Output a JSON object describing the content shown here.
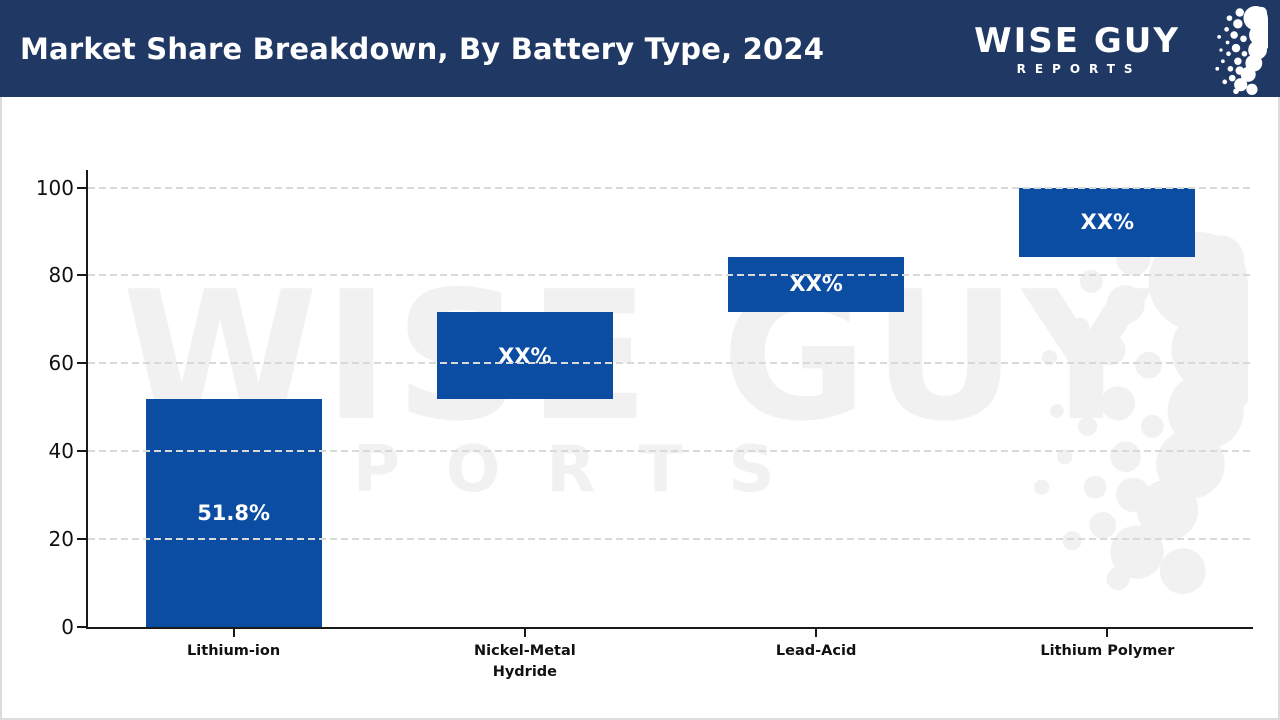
{
  "header": {
    "title": "Market Share Breakdown, By Battery Type, 2024",
    "logo": {
      "name": "WISE GUY",
      "sub": "REPORTS"
    }
  },
  "watermark": {
    "line1": "WISE GUY",
    "line2": "REPORTS"
  },
  "chart_data": {
    "type": "bar",
    "subtype": "waterfall",
    "title": "Market Share Breakdown, By Battery Type, 2024",
    "categories": [
      "Lithium-ion",
      "Nickel-Metal Hydride",
      "Lead-Acid",
      "Lithium Polymer"
    ],
    "segments": [
      {
        "category": "Lithium-ion",
        "start": 0,
        "end": 51.8,
        "label": "51.8%"
      },
      {
        "category": "Nickel-Metal Hydride",
        "start": 51.8,
        "end": 71.6,
        "label": "XX%"
      },
      {
        "category": "Lead-Acid",
        "start": 71.6,
        "end": 84.3,
        "label": "XX%"
      },
      {
        "category": "Lithium Polymer",
        "start": 84.3,
        "end": 100,
        "label": "XX%"
      }
    ],
    "xlabel": "",
    "ylabel": "",
    "yticks": [
      0,
      20,
      40,
      60,
      80,
      100
    ],
    "ylim": [
      0,
      104
    ],
    "grid": "horizontal-dashed",
    "legend": "none",
    "bar_color": "#0b4da2",
    "bar_label_color": "#ffffff"
  },
  "colors": {
    "header_bg": "#1f3864",
    "title_color": "#ffffff",
    "bar": "#0b4da2",
    "grid": "#d9d9d9",
    "axis": "#1a1a1a",
    "frame_border": "#dcdcdc",
    "watermark": "#f1f1f1"
  }
}
